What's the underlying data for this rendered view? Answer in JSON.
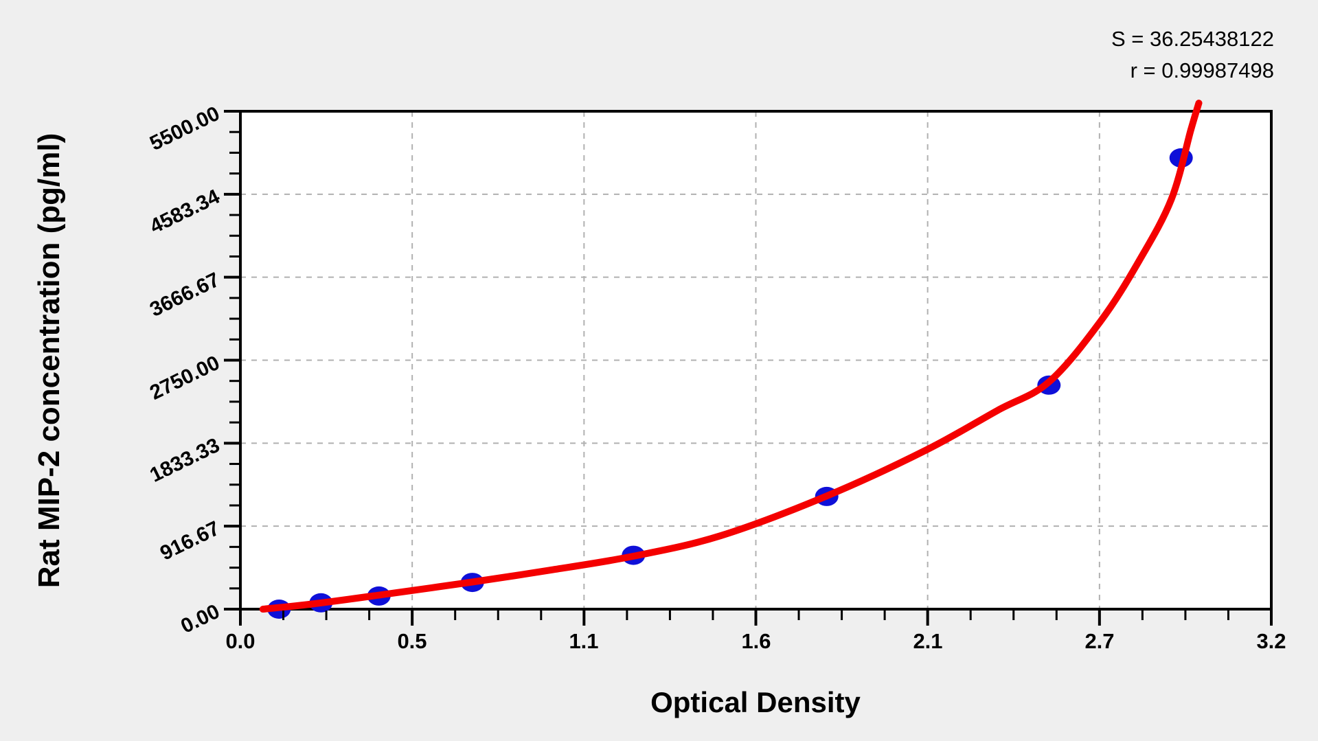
{
  "stats": {
    "s_line": "S = 36.25438122",
    "r_line": "r = 0.99987498"
  },
  "chart_data": {
    "type": "scatter",
    "title": "",
    "xlabel": "Optical Density",
    "ylabel": "Rat MIP-2 concentration (pg/ml)",
    "xlim": [
      0,
      3.2
    ],
    "ylim": [
      0,
      5500
    ],
    "grid": "dashed, at interior major ticks only",
    "legend": "none",
    "fit_stats": {
      "S": 36.25438122,
      "r": 0.99987498
    },
    "x_axis": {
      "major_ticks": [
        {
          "v": 0,
          "label": "0.0"
        },
        {
          "v": 0.5333,
          "label": "0.5"
        },
        {
          "v": 1.0667,
          "label": "1.1"
        },
        {
          "v": 1.6,
          "label": "1.6"
        },
        {
          "v": 2.1333,
          "label": "2.1"
        },
        {
          "v": 2.6667,
          "label": "2.7"
        },
        {
          "v": 3.2,
          "label": "3.2"
        }
      ],
      "minor_divisions": 4
    },
    "y_axis": {
      "major_ticks": [
        {
          "v": 0,
          "label": "0.00"
        },
        {
          "v": 916.67,
          "label": "916.67"
        },
        {
          "v": 1833.33,
          "label": "1833.33"
        },
        {
          "v": 2750,
          "label": "2750.00"
        },
        {
          "v": 3666.67,
          "label": "3666.67"
        },
        {
          "v": 4583.34,
          "label": "4583.34"
        },
        {
          "v": 5500,
          "label": "5500.00"
        }
      ],
      "minor_divisions": 4
    },
    "points": [
      {
        "od": 0.12,
        "conc": 0
      },
      {
        "od": 0.25,
        "conc": 70
      },
      {
        "od": 0.43,
        "conc": 145
      },
      {
        "od": 0.72,
        "conc": 295
      },
      {
        "od": 1.22,
        "conc": 595
      },
      {
        "od": 1.82,
        "conc": 1245
      },
      {
        "od": 2.51,
        "conc": 2475
      },
      {
        "od": 2.92,
        "conc": 4985
      }
    ],
    "curve": [
      [
        0.07,
        0
      ],
      [
        0.23,
        60
      ],
      [
        0.44,
        160
      ],
      [
        0.72,
        300
      ],
      [
        0.96,
        430
      ],
      [
        1.22,
        585
      ],
      [
        1.49,
        810
      ],
      [
        1.82,
        1250
      ],
      [
        2.13,
        1760
      ],
      [
        2.35,
        2195
      ],
      [
        2.51,
        2510
      ],
      [
        2.67,
        3180
      ],
      [
        2.79,
        3850
      ],
      [
        2.89,
        4530
      ],
      [
        2.95,
        5290
      ],
      [
        2.975,
        5590
      ]
    ],
    "colors": {
      "curve": "#f40000",
      "points": "#0f10d8",
      "grid": "#b0b0b0",
      "axis": "#000000",
      "background": "#efefef",
      "plot_bg": "#ffffff",
      "text": "#000000"
    }
  }
}
